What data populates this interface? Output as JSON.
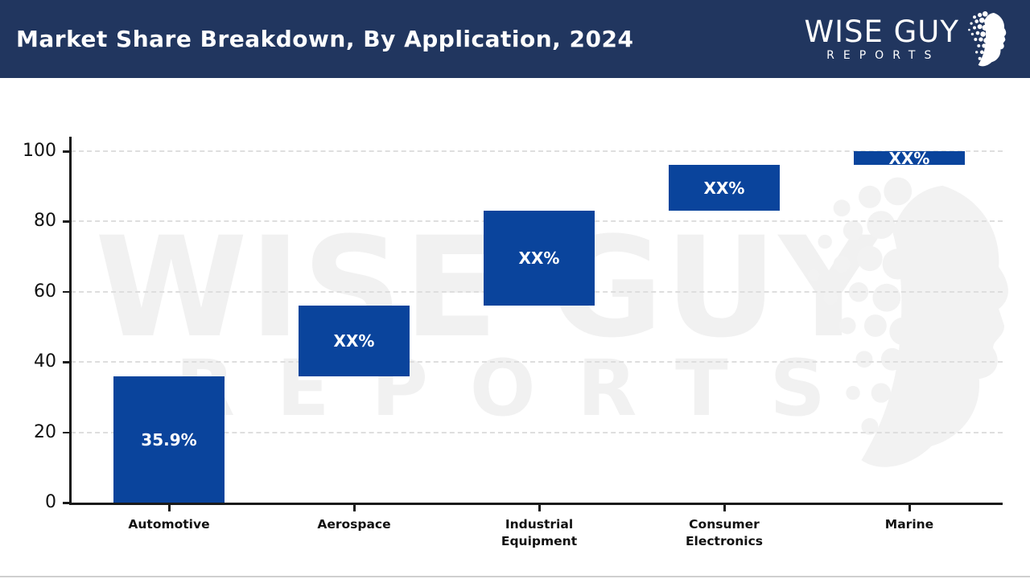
{
  "header": {
    "title": "Market Share Breakdown, By Application, 2024",
    "bg_color": "#21365f",
    "logo": {
      "line1": "WISE GUY",
      "line2": "REPORTS"
    }
  },
  "watermark": {
    "line1": "WISE GUY",
    "line2": "REPORTS"
  },
  "chart_data": {
    "type": "bar",
    "subtype": "waterfall",
    "title": "Market Share Breakdown, By Application, 2024",
    "categories": [
      {
        "label": "Automotive",
        "lines": [
          "Automotive"
        ]
      },
      {
        "label": "Aerospace",
        "lines": [
          "Aerospace"
        ]
      },
      {
        "label": "Industrial Equipment",
        "lines": [
          "Industrial",
          "Equipment"
        ]
      },
      {
        "label": "Consumer Electronics",
        "lines": [
          "Consumer",
          "Electronics"
        ]
      },
      {
        "label": "Marine",
        "lines": [
          "Marine"
        ]
      }
    ],
    "segments": [
      {
        "category": "Automotive",
        "base": 0,
        "top": 35.9,
        "value": 35.9,
        "label": "35.9%"
      },
      {
        "category": "Aerospace",
        "base": 35.9,
        "top": 56.0,
        "value": 20.1,
        "label": "XX%"
      },
      {
        "category": "Industrial Equipment",
        "base": 56.0,
        "top": 83.0,
        "value": 27.0,
        "label": "XX%"
      },
      {
        "category": "Consumer Electronics",
        "base": 83.0,
        "top": 96.0,
        "value": 13.0,
        "label": "XX%"
      },
      {
        "category": "Marine",
        "base": 96.0,
        "top": 100.0,
        "value": 4.0,
        "label": "XX%"
      }
    ],
    "ylim": [
      0,
      100
    ],
    "yticks": [
      0,
      20,
      40,
      60,
      80,
      100
    ],
    "xlabel": "",
    "ylabel": "",
    "grid": "horizontal-dashed",
    "legend": "none",
    "bar_color": "#0a449c",
    "bar_label_color": "#ffffff"
  }
}
